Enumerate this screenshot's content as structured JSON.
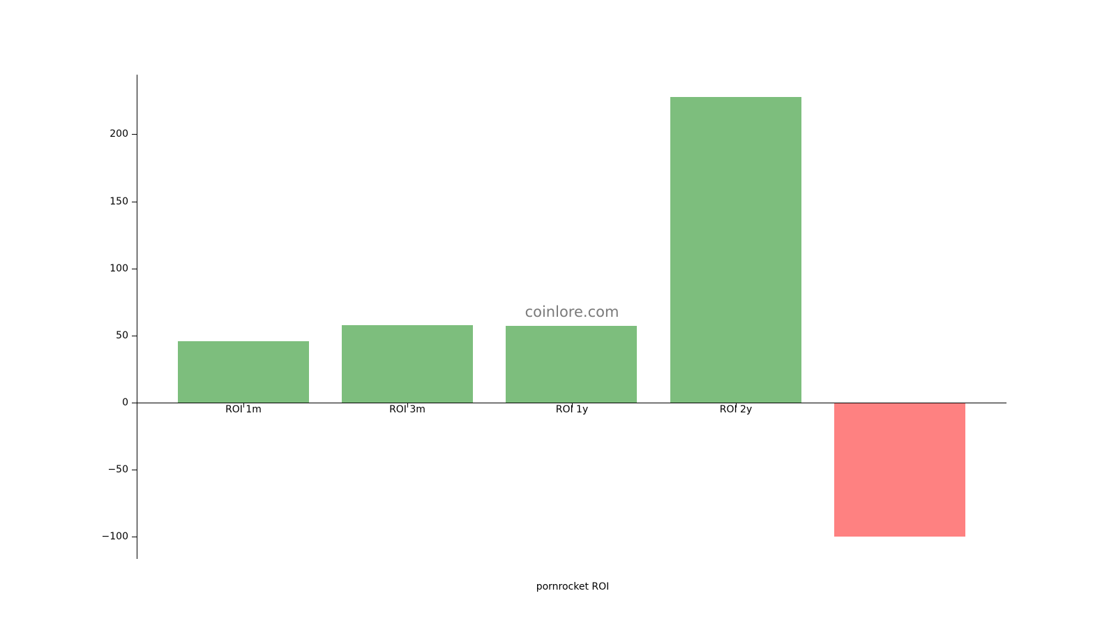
{
  "watermark": "coinlore.com",
  "chart_data": {
    "type": "bar",
    "title": "pornrocket ROI",
    "xlabel": "pornrocket ROI",
    "ylabel": "",
    "categories": [
      "ROI 1m",
      "ROI 3m",
      "ROI 1y",
      "ROI 2y",
      ""
    ],
    "values": [
      46,
      58,
      57,
      228,
      -100
    ],
    "bar_colors": [
      "#7dbe7d",
      "#7dbe7d",
      "#7dbe7d",
      "#7dbe7d",
      "#fe8181"
    ],
    "positive_color": "#7dbe7d",
    "negative_color": "#fe8181",
    "yticks": [
      200,
      150,
      100,
      50,
      0,
      -50,
      -100
    ],
    "ylim": [
      -116.4,
      244.4
    ],
    "grid": false,
    "legend_position": "none",
    "watermark": "coinlore.com"
  }
}
